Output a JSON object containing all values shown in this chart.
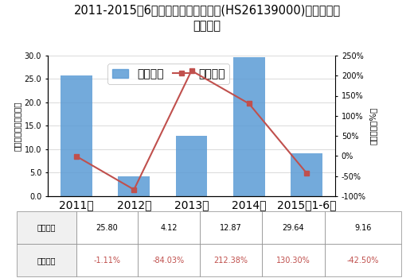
{
  "title": "2011-2015年6月其他钼矿砂及其精矿(HS26139000)出口总额及\n增速统计",
  "categories": [
    "2011年",
    "2012年",
    "2013年",
    "2014年",
    "2015年1-6月"
  ],
  "bar_values": [
    25.8,
    4.12,
    12.87,
    29.64,
    9.16
  ],
  "line_values": [
    -1.11,
    -84.03,
    212.38,
    130.3,
    -42.5
  ],
  "bar_color": "#5B9BD5",
  "line_color": "#C0504D",
  "ylabel_left": "出口金额（百万美元）",
  "ylabel_right": "同比增速（%）",
  "legend_bar": "出口金额",
  "legend_line": "同比增长",
  "ylim_left": [
    0,
    30
  ],
  "ylim_right": [
    -100,
    250
  ],
  "yticks_left": [
    0.0,
    5.0,
    10.0,
    15.0,
    20.0,
    25.0,
    30.0
  ],
  "yticks_right": [
    -100,
    -50,
    0,
    50,
    100,
    150,
    200,
    250
  ],
  "ytick_labels_right": [
    "-100%",
    "-50%",
    "0%",
    "50%",
    "100%",
    "150%",
    "200%",
    "250%"
  ],
  "table_row1_label": "出口金额",
  "table_row2_label": "同比增长",
  "table_row1_values": [
    "25.80",
    "4.12",
    "12.87",
    "29.64",
    "9.16"
  ],
  "table_row2_values": [
    "-1.11%",
    "-84.03%",
    "212.38%",
    "130.30%",
    "-42.50%"
  ],
  "background_color": "#FFFFFF",
  "title_fontsize": 10.5,
  "bar_alpha": 0.85
}
